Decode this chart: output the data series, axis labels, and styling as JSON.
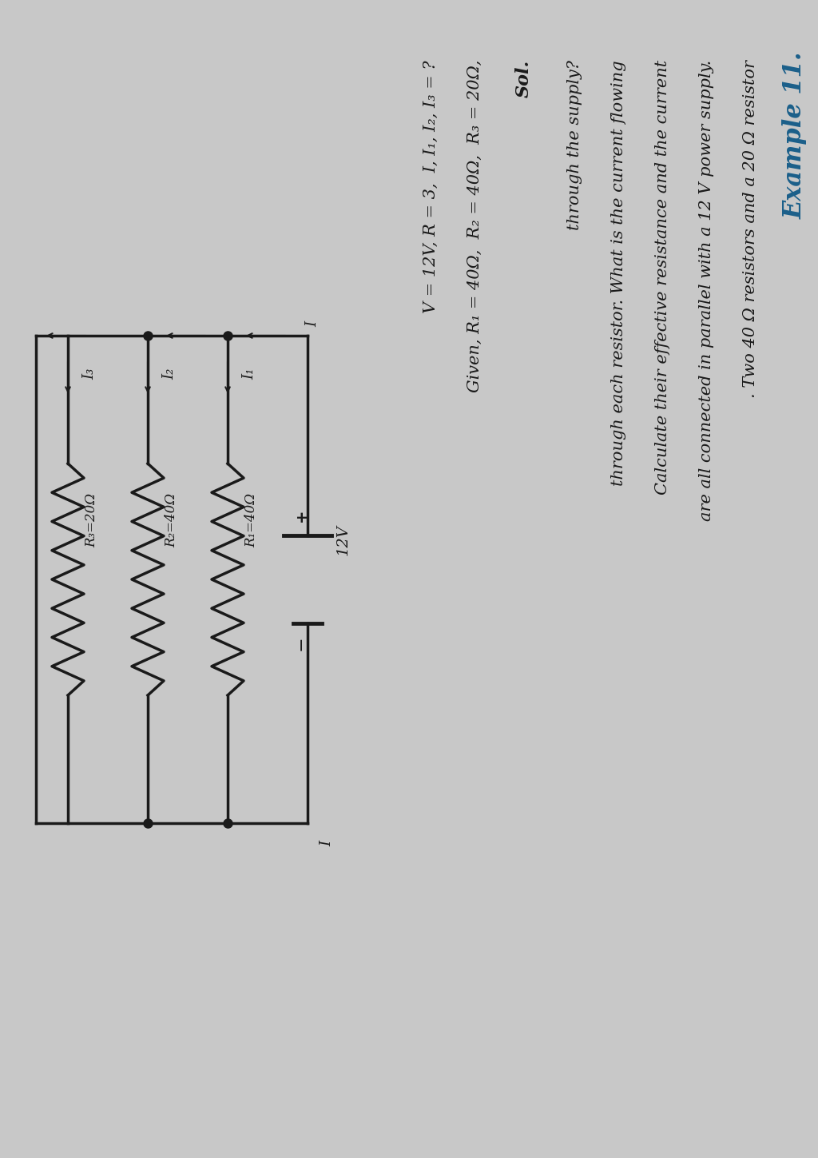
{
  "background_color": "#c8c8c8",
  "wire_color": "#1a1a1a",
  "text_color": "#1a1a1a",
  "example_color": "#1a5f8a",
  "title": "Example 11.",
  "line1": ". Two 40 Ω resistors and a 20 Ω resistor",
  "line2": "are all connected in parallel with a 12 V power supply.",
  "line3": "Calculate their effective resistance and the current",
  "line4": "through each resistor. What is the current flowing",
  "line5": "through the supply?",
  "sol": "Sol.",
  "given1": "Given, R₁ = 40Ω,  R₂ = 40Ω,  R₃ = 20Ω,",
  "given2": "V = 12V, R = 3,  I, I₁, I₂, I₃ = ?",
  "rot": 90,
  "fs_title": 22,
  "fs_body": 15,
  "fs_sol": 16,
  "fs_circuit": 13,
  "fs_resistor_label": 12
}
